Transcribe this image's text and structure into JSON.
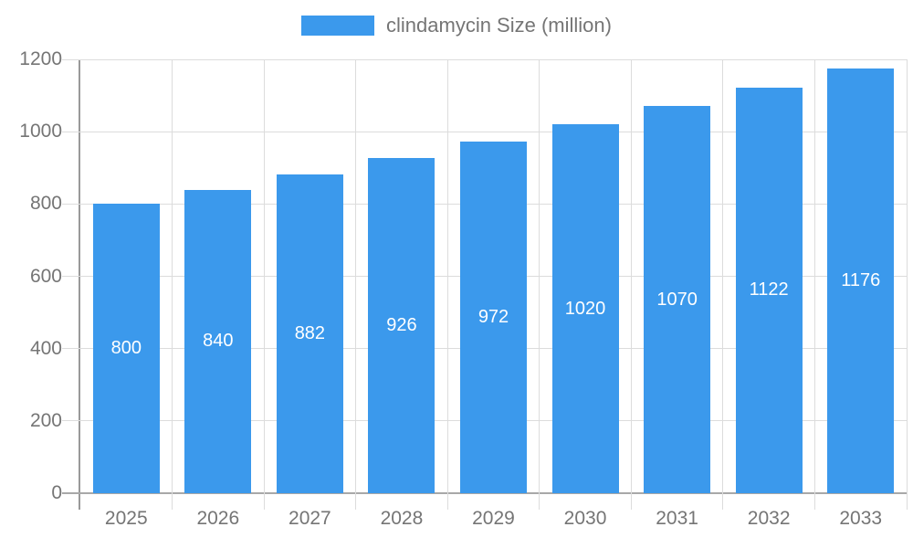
{
  "chart_data": {
    "type": "bar",
    "title": "",
    "xlabel": "",
    "ylabel": "",
    "categories": [
      "2025",
      "2026",
      "2027",
      "2028",
      "2029",
      "2030",
      "2031",
      "2032",
      "2033"
    ],
    "series": [
      {
        "name": "clindamycin Size (million)",
        "values": [
          800,
          840,
          882,
          926,
          972,
          1020,
          1070,
          1122,
          1176
        ]
      }
    ],
    "bar_value_labels": [
      "800",
      "840",
      "882",
      "926",
      "972",
      "1020",
      "1070",
      "1122",
      "1176"
    ],
    "ylim": [
      0,
      1200
    ],
    "ytick_step": 200,
    "yticks": [
      "0",
      "200",
      "400",
      "600",
      "800",
      "1000",
      "1200"
    ],
    "grid": true,
    "legend_position": "top",
    "colors": {
      "bar": "#3B99EC",
      "bar_label": "#ffffff",
      "axis_text": "#757575",
      "grid_line": "#dcdcdc",
      "y_axis_line": "#999999",
      "x_axis_line": "#a8a8a8",
      "background": "#ffffff"
    }
  }
}
